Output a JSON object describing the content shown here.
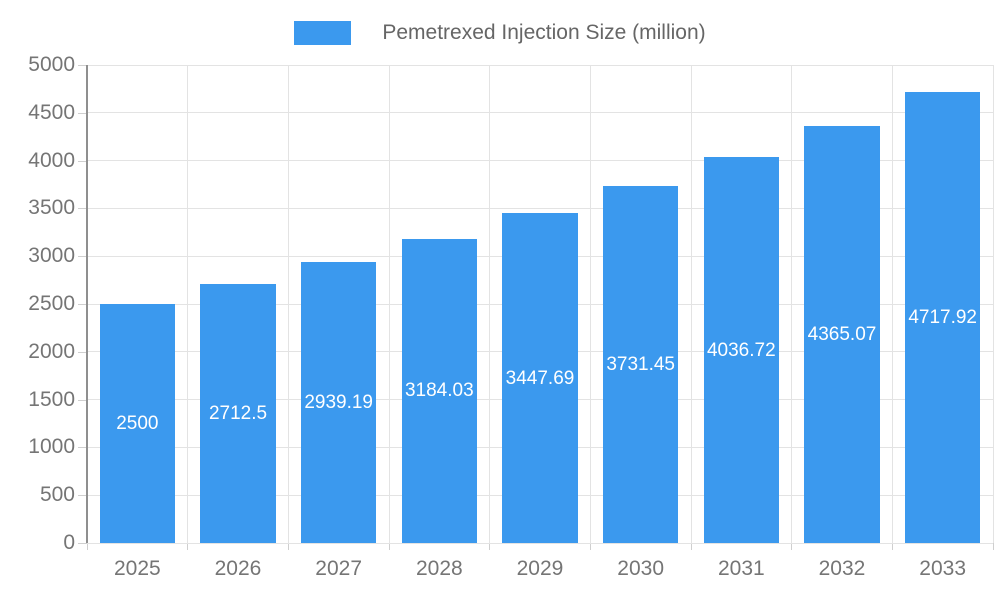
{
  "legend": {
    "label": "Pemetrexed Injection Size (million)"
  },
  "colors": {
    "bar": "#3b99ee",
    "grid_line": "#e3e3e3",
    "tick": "#cfcfcf",
    "axis_line": "#8f8f8f",
    "axis_text": "#757575",
    "legend_text": "#666666",
    "bar_label_text": "#ffffff"
  },
  "chart_data": {
    "type": "bar",
    "title": "Pemetrexed Injection Size (million)",
    "categories": [
      "2025",
      "2026",
      "2027",
      "2028",
      "2029",
      "2030",
      "2031",
      "2032",
      "2033"
    ],
    "values": [
      2500,
      2712.5,
      2939.19,
      3184.03,
      3447.69,
      3731.45,
      4036.72,
      4365.07,
      4717.92
    ],
    "bar_labels": [
      "2500",
      "2712.5",
      "2939.19",
      "3184.03",
      "3447.69",
      "3731.45",
      "4036.72",
      "4365.07",
      "4717.92"
    ],
    "ytick_labels": [
      "0",
      "500",
      "1000",
      "1500",
      "2000",
      "2500",
      "3000",
      "3500",
      "4000",
      "4500",
      "5000"
    ],
    "xlabel": "",
    "ylabel": "",
    "ylim": [
      0,
      5000
    ],
    "ytick_step": 500,
    "grid": true,
    "legend_position": "top",
    "bar_width_fraction": 0.75
  }
}
